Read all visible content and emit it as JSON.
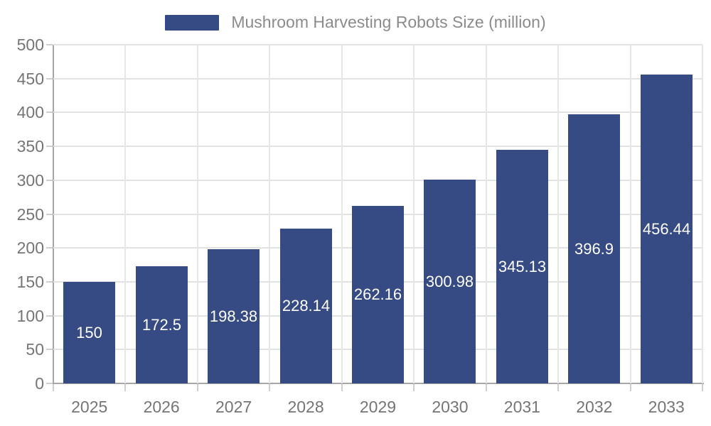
{
  "legend": {
    "label": "Mushroom Harvesting Robots Size (million)"
  },
  "chart_data": {
    "type": "bar",
    "title": "Mushroom Harvesting Robots Size (million)",
    "categories": [
      "2025",
      "2026",
      "2027",
      "2028",
      "2029",
      "2030",
      "2031",
      "2032",
      "2033"
    ],
    "values": [
      150,
      172.5,
      198.38,
      228.14,
      262.16,
      300.98,
      345.13,
      396.9,
      456.44
    ],
    "value_labels": [
      "150",
      "172.5",
      "198.38",
      "228.14",
      "262.16",
      "300.98",
      "345.13",
      "396.9",
      "456.44"
    ],
    "xlabel": "",
    "ylabel": "",
    "ylim": [
      0,
      500
    ],
    "yticks": [
      0,
      50,
      100,
      150,
      200,
      250,
      300,
      350,
      400,
      450,
      500
    ],
    "grid": true,
    "legend_position": "top-center",
    "value_label_position": "inside-center",
    "colors": {
      "bar": "#364A84",
      "value_label": "#ffffff",
      "axis_line": "#a6a6a6",
      "grid_line": "#e2e2e2",
      "tick_text": "#757575",
      "legend_text": "#8b8b8b",
      "background": "#ffffff"
    }
  }
}
